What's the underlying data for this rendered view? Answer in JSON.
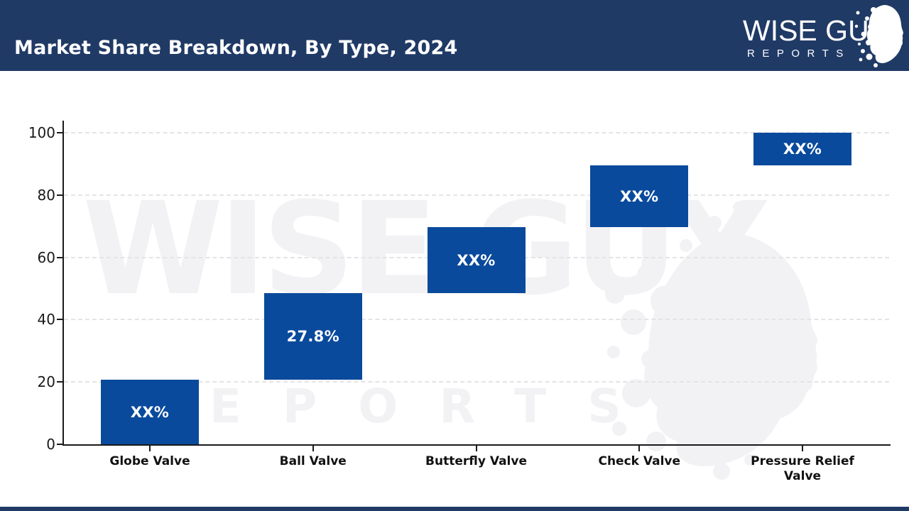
{
  "header": {
    "title": "Market Share Breakdown, By Type, 2024",
    "logo": {
      "line1": "WISE GUY",
      "line2": "REPORTS"
    }
  },
  "watermark": {
    "line1": "WISE GUY",
    "line2": "REPORTS"
  },
  "colors": {
    "header_bg": "#203a66",
    "header_text": "#ffffff",
    "bar": "#0a4a9c",
    "bar_label": "#ffffff",
    "axis": "#1a1a1a",
    "grid": "#e4e4e6",
    "watermark": "#f2f2f4",
    "bottom_strip": "#203a66"
  },
  "chart_data": {
    "type": "bar",
    "subtype": "waterfall",
    "title": "Market Share Breakdown, By Type, 2024",
    "categories": [
      "Globe Valve",
      "Ball Valve",
      "Butterfly Valve",
      "Check Valve",
      "Pressure Relief Valve"
    ],
    "series": [
      {
        "name": "Market share (%)",
        "segments": [
          {
            "from": 0,
            "to": 20.7,
            "label": "XX%"
          },
          {
            "from": 20.7,
            "to": 48.5,
            "label": "27.8%",
            "value": 27.8
          },
          {
            "from": 48.5,
            "to": 69.7,
            "label": "XX%"
          },
          {
            "from": 69.7,
            "to": 89.5,
            "label": "XX%"
          },
          {
            "from": 89.5,
            "to": 100,
            "label": "XX%"
          }
        ]
      }
    ],
    "xlabel": "",
    "ylabel": "",
    "ylim": [
      0,
      100
    ],
    "yticks": [
      0,
      20,
      40,
      60,
      80,
      100
    ],
    "grid": "horizontal-dashed",
    "legend": "none",
    "bar_color": "#0a4a9c",
    "label_color": "#ffffff"
  }
}
